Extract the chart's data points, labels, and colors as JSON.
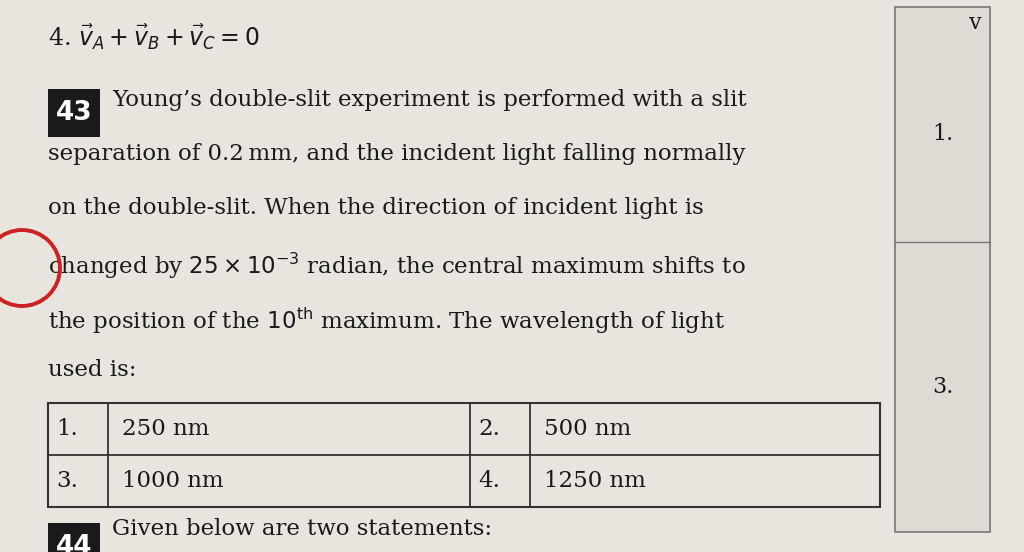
{
  "background_color": "#e8e4de",
  "question_number": "43",
  "question_number_bg": "#1a1a1a",
  "lines": [
    "Young’s double-slit experiment is performed with a slit",
    "separation of 0.2 mm, and the incident light falling normally",
    "on the double-slit. When the direction of incident light is",
    "changed by $25 \\times 10^{-3}$ radian, the central maximum shifts to",
    "the position of the $10^{\\mathrm{th}}$ maximum. The wavelength of light",
    "used is:"
  ],
  "options": [
    {
      "num": "1.",
      "text": "250 nm"
    },
    {
      "num": "2.",
      "text": "500 nm"
    },
    {
      "num": "3.",
      "text": "1000 nm"
    },
    {
      "num": "4.",
      "text": "1250 nm"
    }
  ],
  "footer_number": "44",
  "footer_text": "Given below are two statements:",
  "right_label_top": "v",
  "right_panel_labels": [
    "1.",
    "3."
  ],
  "top_formula": "4. $\\vec{v}_A + \\vec{v}_B + \\vec{v}_C = 0$",
  "fig_width": 10.24,
  "fig_height": 5.52,
  "dpi": 100,
  "text_color": "#1a1a1a",
  "table_color": "#333333",
  "red_circle_color": "#cc2222"
}
